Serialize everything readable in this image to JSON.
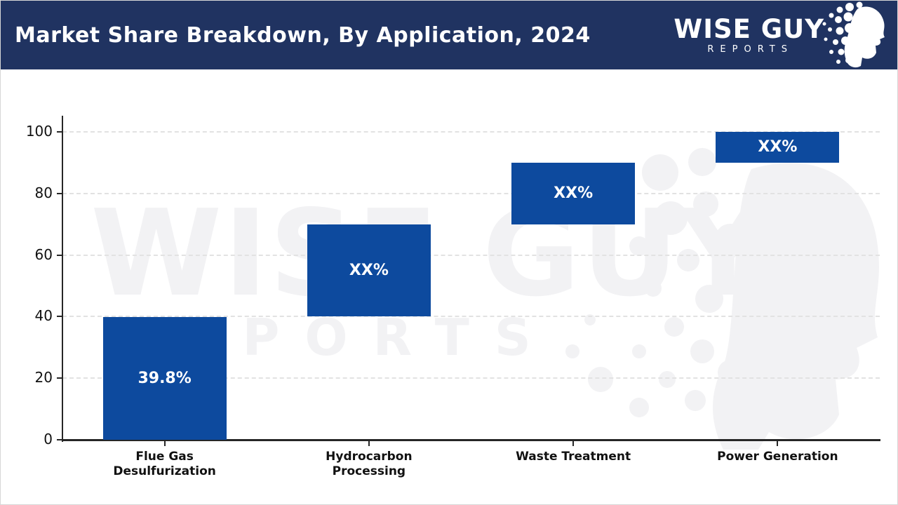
{
  "header": {
    "title": "Market Share Breakdown, By Application, 2024"
  },
  "logo": {
    "line1": "WISE GUY",
    "line2": "REPORTS",
    "icon": "wiseguy-dotted-head-icon"
  },
  "watermark": {
    "line1": "WISE GUY",
    "line2": "REPORTS",
    "icon": "wiseguy-dotted-head-watermark"
  },
  "colors": {
    "header_bg": "#203361",
    "bar": "#0d4a9e",
    "axis": "#262626",
    "grid": "#e2e2e2",
    "watermark": "#f2f2f4",
    "bar_label": "#ffffff"
  },
  "chart_data": {
    "type": "bar",
    "variant": "waterfall",
    "title": "Market Share Breakdown, By Application, 2024",
    "xlabel": "",
    "ylabel": "",
    "ylim": [
      0,
      100
    ],
    "yticks": [
      0,
      20,
      40,
      60,
      80,
      100
    ],
    "grid": "horizontal-dashed",
    "legend": "none",
    "categories": [
      "Flue Gas Desulfurization",
      "Hydrocarbon Processing",
      "Waste Treatment",
      "Power Generation"
    ],
    "segments": [
      {
        "category": "Flue Gas Desulfurization",
        "start": 0,
        "end": 39.8,
        "label": "39.8%"
      },
      {
        "category": "Hydrocarbon Processing",
        "start": 40,
        "end": 70,
        "label": "XX%"
      },
      {
        "category": "Waste Treatment",
        "start": 70,
        "end": 90,
        "label": "XX%"
      },
      {
        "category": "Power Generation",
        "start": 90,
        "end": 100,
        "label": "XX%"
      }
    ]
  }
}
